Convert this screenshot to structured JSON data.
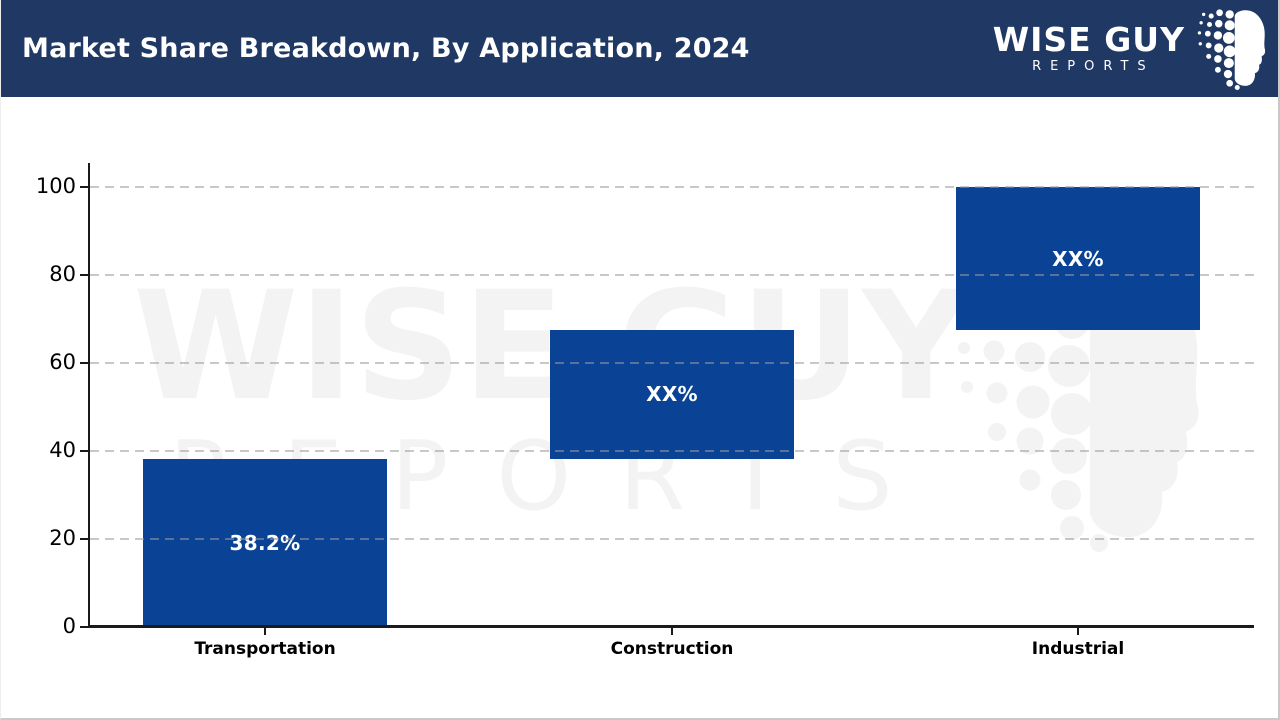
{
  "header": {
    "title": "Market Share Breakdown, By Application, 2024",
    "logo": {
      "line1": "WISE GUY",
      "line2": "REPORTS"
    }
  },
  "watermark": {
    "line1": "WISE GUY",
    "line2": "REPORTS"
  },
  "colors": {
    "header_bg": "#1f3864",
    "bar": "#0a4296",
    "bar_label": "#ffffff",
    "axis": "#1a1a1a",
    "gridline": "#b4b4b4",
    "watermark": "#f3f3f3"
  },
  "chart_data": {
    "type": "bar",
    "variant": "floating-segment-breakdown",
    "title": "Market Share Breakdown, By Application, 2024",
    "categories": [
      "Transportation",
      "Construction",
      "Industrial"
    ],
    "segments": [
      {
        "category": "Transportation",
        "start": 0,
        "end": 38.2,
        "label": "38.2%"
      },
      {
        "category": "Construction",
        "start": 38.2,
        "end": 67.5,
        "label": "XX%"
      },
      {
        "category": "Industrial",
        "start": 67.5,
        "end": 100,
        "label": "XX%"
      }
    ],
    "yticks": [
      0,
      20,
      40,
      60,
      80,
      100
    ],
    "ylim": [
      0,
      105.5
    ],
    "xlabel": "",
    "ylabel": "",
    "grid": "dashed-horizontal",
    "legend": "none"
  }
}
